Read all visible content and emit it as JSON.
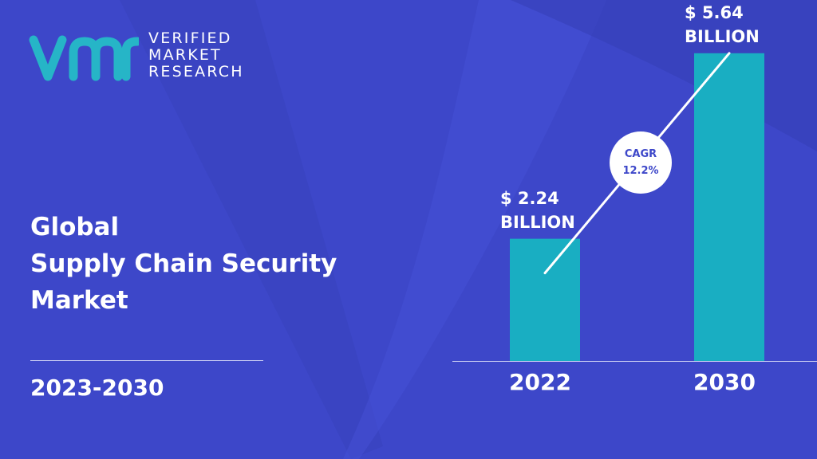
{
  "brand": {
    "lines": [
      "VERIFIED",
      "MARKET",
      "RESEARCH"
    ],
    "logo_color": "#26b5c7"
  },
  "title": {
    "lines": [
      "Global",
      "Supply Chain Security",
      "Market"
    ]
  },
  "forecast_period": "2023-2030",
  "cagr": {
    "label": "CAGR",
    "value": "12.2%"
  },
  "colors": {
    "background": "#3d47c9",
    "bar": "#19aec2",
    "text": "#ffffff"
  },
  "chart_data": {
    "type": "bar",
    "categories": [
      "2022",
      "2030"
    ],
    "values": [
      2.24,
      5.64
    ],
    "value_labels": [
      [
        "$ 2.24",
        "BILLION"
      ],
      [
        "$ 5.64",
        "BILLION"
      ]
    ],
    "ylim": [
      0,
      7.01
    ],
    "grid": false,
    "legend": "none"
  }
}
